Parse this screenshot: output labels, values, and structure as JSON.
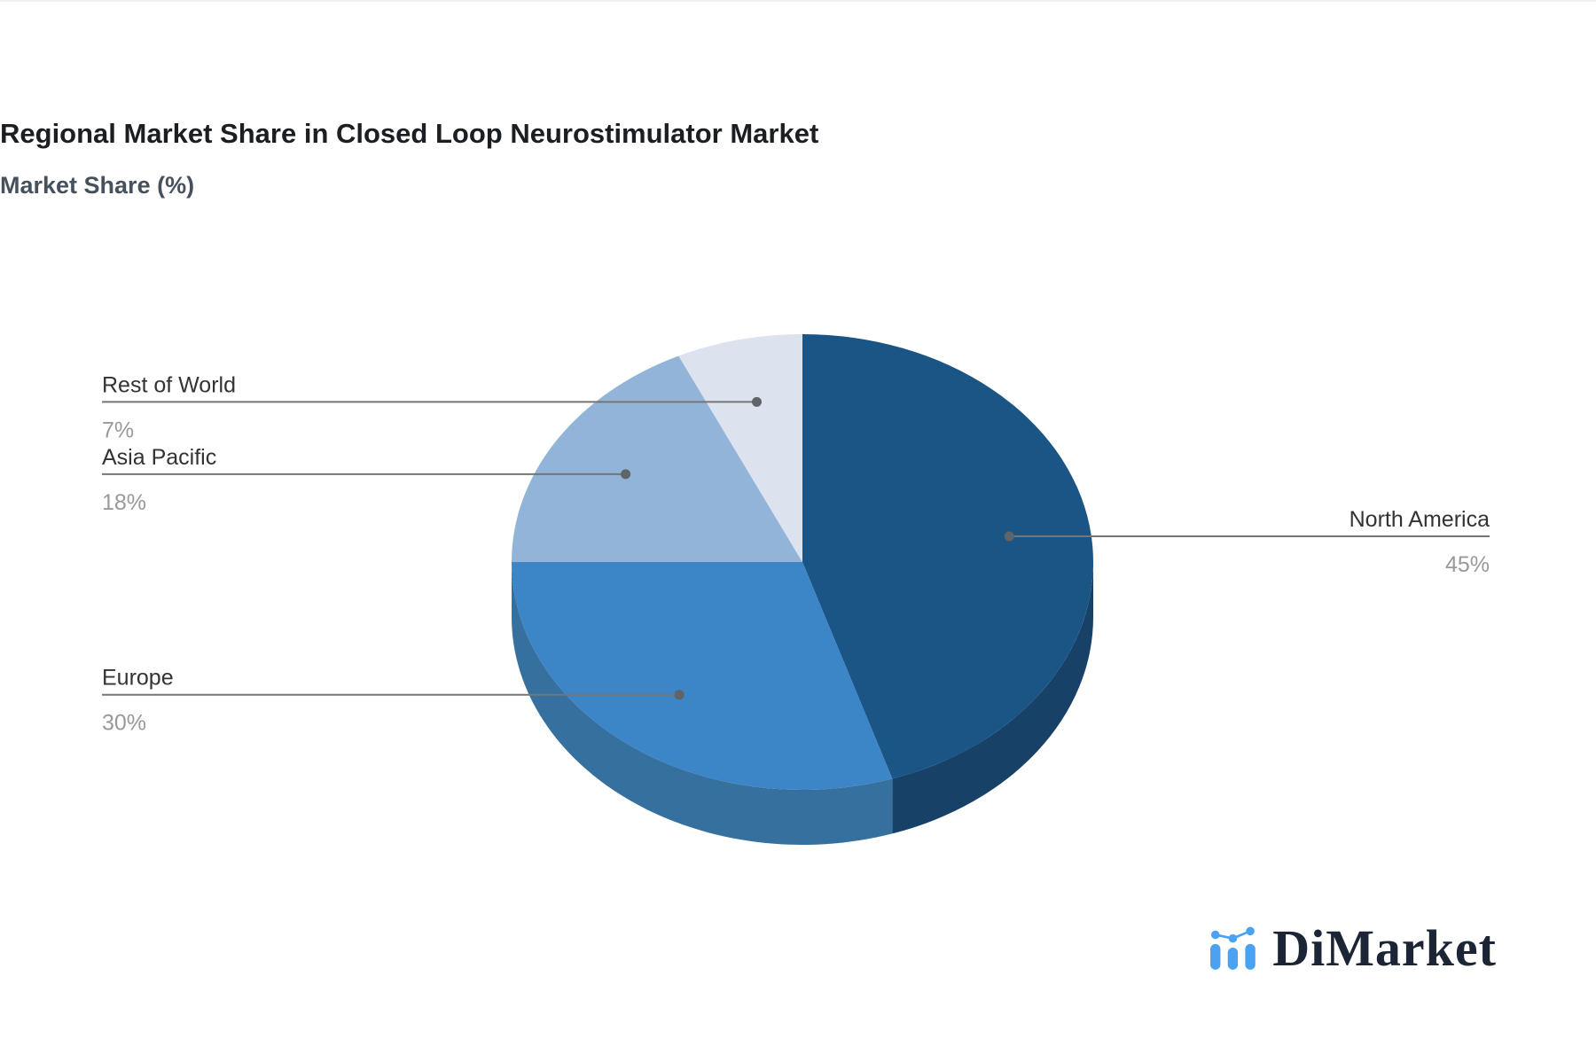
{
  "chart_data": {
    "type": "pie",
    "style": "3d",
    "title": "Regional Market Share in Closed Loop Neurostimulator Market",
    "subtitle": "Market Share (%)",
    "unit": "percent",
    "start_angle_deg": 0,
    "direction": "clockwise",
    "legend_position": "callout-labels",
    "series": [
      {
        "name": "North America",
        "value": 45,
        "label": "45%",
        "color": "#1B5586",
        "side_color": "#184168"
      },
      {
        "name": "Europe",
        "value": 30,
        "label": "30%",
        "color": "#3C85C7",
        "side_color": "#35709F"
      },
      {
        "name": "Asia Pacific",
        "value": 18,
        "label": "18%",
        "color": "#91B4D8",
        "side_color": "#7FA3C9"
      },
      {
        "name": "Rest of World",
        "value": 7,
        "label": "7%",
        "color": "#DCE3EE",
        "side_color": "#C4CFDF"
      }
    ],
    "label_style": {
      "name_color": "#333333",
      "value_color": "#999999",
      "line_color": "#757575",
      "dot_color": "#5f6468"
    }
  },
  "logo": {
    "text": "DiMarket",
    "icon": "bar-line-chart-icon",
    "icon_color": "#4AA2F2",
    "text_color": "#1B2536"
  }
}
